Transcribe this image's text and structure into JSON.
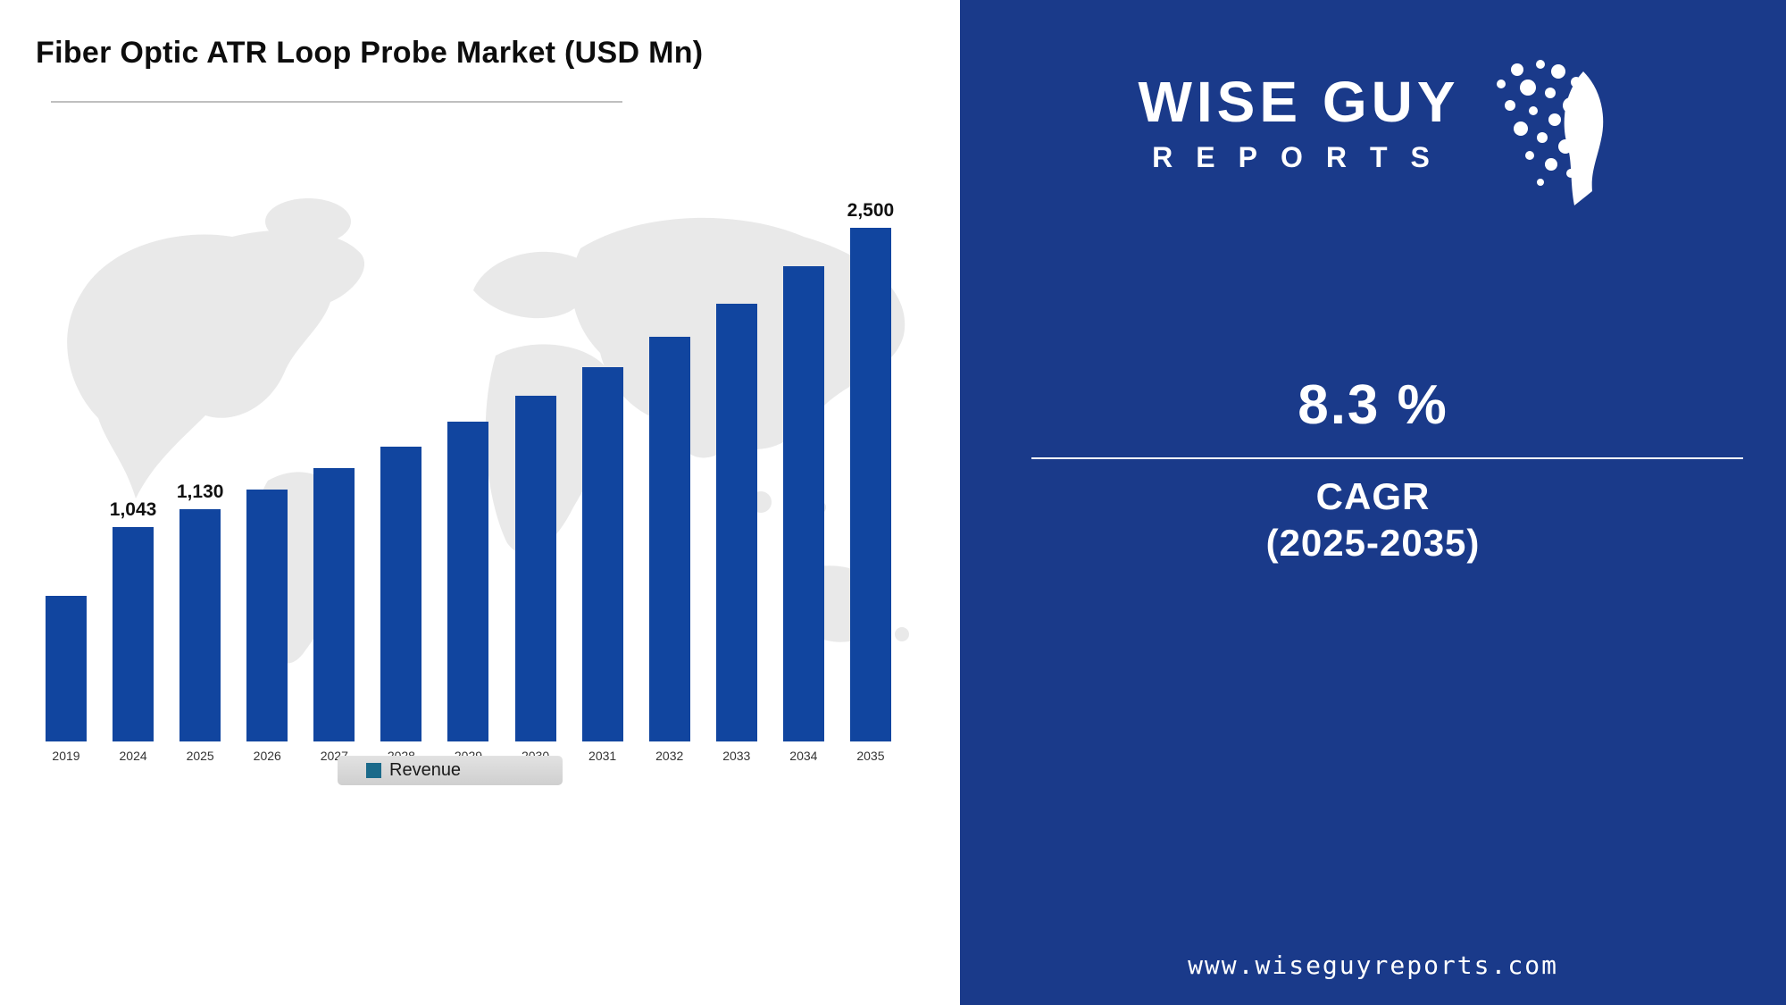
{
  "title": "Fiber Optic ATR Loop Probe Market (USD Mn)",
  "legend": {
    "label": "Revenue",
    "swatch_color": "#1b6a8a"
  },
  "chart_data": {
    "type": "bar",
    "title": "Fiber Optic ATR Loop Probe Market (USD Mn)",
    "categories": [
      "2019",
      "2024",
      "2025",
      "2026",
      "2027",
      "2028",
      "2029",
      "2030",
      "2031",
      "2032",
      "2033",
      "2034",
      "2035"
    ],
    "values": [
      710,
      1043,
      1130,
      1226,
      1330,
      1435,
      1556,
      1683,
      1822,
      1970,
      2130,
      2313,
      2500
    ],
    "data_labels": {
      "2024": "1,043",
      "2025": "1,130",
      "2035": "2,500"
    },
    "xlabel": "",
    "ylabel": "",
    "ylim": [
      0,
      2600
    ],
    "grid": false,
    "legend_position": "bottom",
    "bar_color": "#11459f",
    "series_name": "Revenue"
  },
  "sidebar": {
    "background_color": "#1a3a8a",
    "logo": {
      "line1": "WISE GUY",
      "line2": "REPORTS"
    },
    "cagr_value": "8.3 %",
    "cagr_label": "CAGR",
    "cagr_period": "(2025-2035)",
    "website": "www.wiseguyreports.com"
  }
}
